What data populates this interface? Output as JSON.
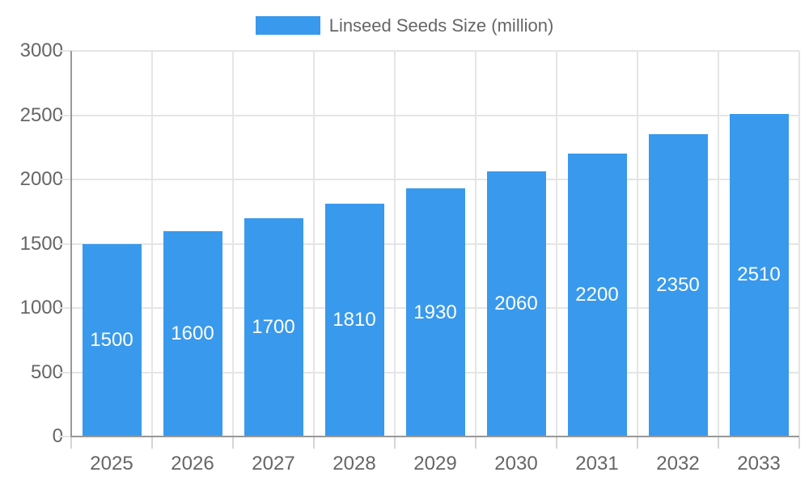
{
  "legend": {
    "label": "Linseed Seeds Size (million)"
  },
  "colors": {
    "bar": "#3999EC",
    "axis_line": "#989898",
    "grid_line": "#E5E5E5",
    "tick": "#D5D5D5",
    "axis_text": "#666666",
    "bar_label_text": "#FFFFFF",
    "background": "#FFFFFF"
  },
  "chart_data": {
    "type": "bar",
    "title": "Linseed Seeds Size (million)",
    "categories": [
      "2025",
      "2026",
      "2027",
      "2028",
      "2029",
      "2030",
      "2031",
      "2032",
      "2033"
    ],
    "values": [
      1500,
      1600,
      1700,
      1810,
      1930,
      2060,
      2200,
      2350,
      2510
    ],
    "xlabel": "",
    "ylabel": "",
    "ylim": [
      0,
      3000
    ],
    "ytick_step": 500,
    "ytick_labels": [
      "0",
      "500",
      "1000",
      "1500",
      "2000",
      "2500",
      "3000"
    ],
    "grid": true,
    "legend_position": "top",
    "legend_entries": [
      "Linseed Seeds Size (million)"
    ],
    "bar_value_labels": "inside-center-white"
  }
}
